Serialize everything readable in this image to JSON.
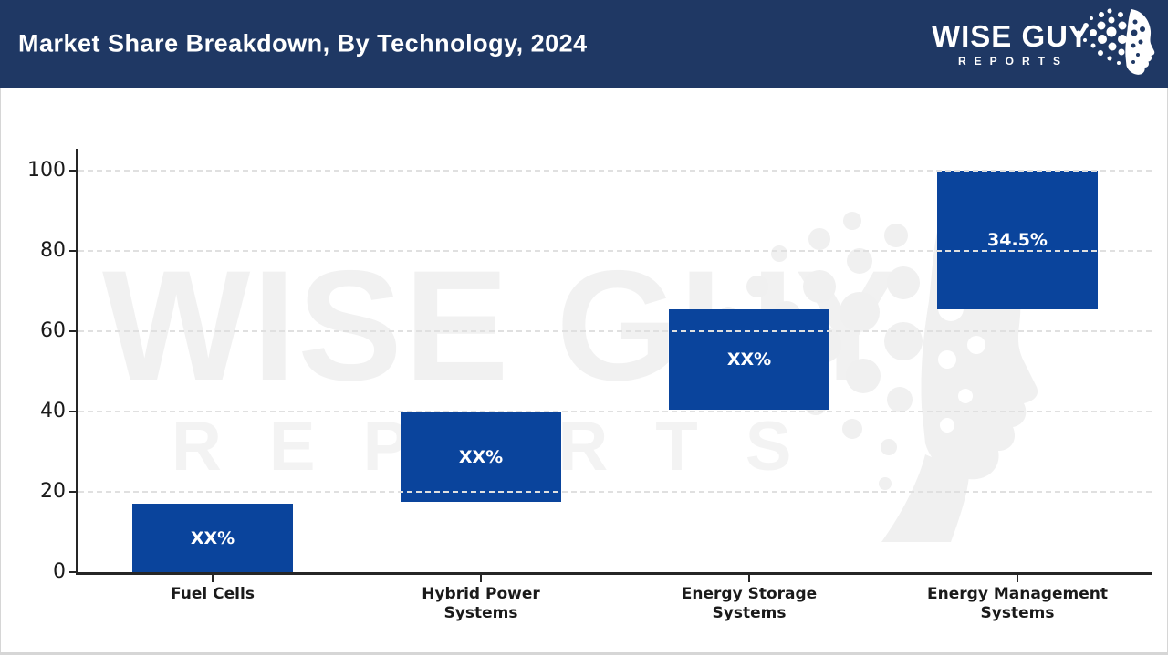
{
  "header": {
    "title": "Market Share Breakdown, By Technology, 2024",
    "logo": {
      "line1": "WISE GUY",
      "line2": "REPORTS"
    }
  },
  "watermark": {
    "line1": "WISE GUY",
    "line2": "REPORTS"
  },
  "chart_data": {
    "type": "bar",
    "variant": "waterfall-floating-bars",
    "title": "Market Share Breakdown, By Technology, 2024",
    "xlabel": "",
    "ylabel": "",
    "ylim": [
      0,
      100
    ],
    "yticks": [
      0,
      20,
      40,
      60,
      80,
      100
    ],
    "grid": "horizontal-dashed",
    "legend": "none",
    "categories": [
      "Fuel Cells",
      "Hybrid Power\nSystems",
      "Energy Storage\nSystems",
      "Energy Management\nSystems"
    ],
    "bars": [
      {
        "category": "Fuel Cells",
        "start": 0,
        "end": 17,
        "label": "XX%"
      },
      {
        "category": "Hybrid Power\nSystems",
        "start": 17.5,
        "end": 40,
        "label": "XX%"
      },
      {
        "category": "Energy Storage\nSystems",
        "start": 40.5,
        "end": 65.5,
        "label": "XX%"
      },
      {
        "category": "Energy Management\nSystems",
        "start": 65.5,
        "end": 100,
        "label": "34.5%"
      }
    ]
  },
  "colors": {
    "header_background": "#1f3864",
    "bar_fill": "#0a449c",
    "axis": "#262626",
    "gridline": "#e0e0e0",
    "text": "#1a1a1a",
    "watermark": "#f1f1f1",
    "frame_border": "#d6d6d6",
    "title_text": "#ffffff",
    "bar_label_text": "#ffffff"
  }
}
